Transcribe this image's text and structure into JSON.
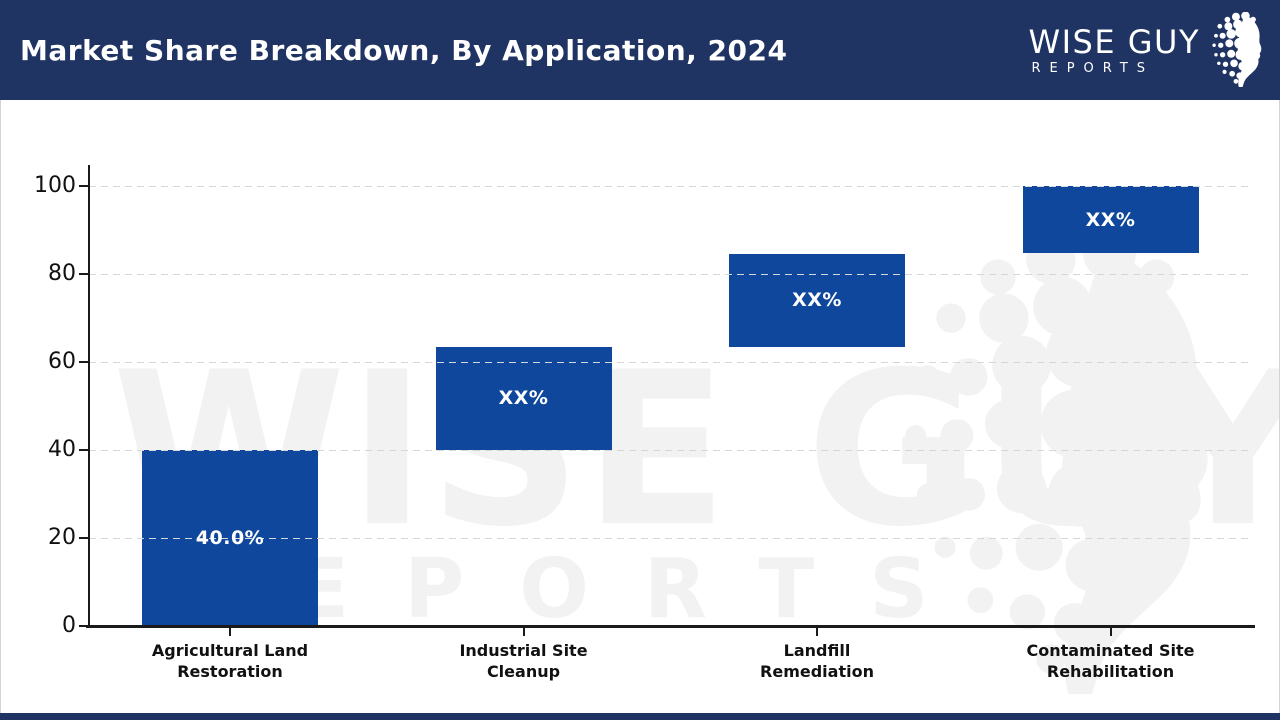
{
  "header": {
    "title": "Market Share Breakdown, By Application, 2024",
    "bg_color": "#203463",
    "logo": {
      "line1": "WISE GUY",
      "line2": "REPORTS"
    }
  },
  "watermark": {
    "line1": "WISE GUY",
    "line2": "REPORTS"
  },
  "chart_data": {
    "type": "bar",
    "subtype": "waterfall-floating-segments",
    "title": "Market Share Breakdown, By Application, 2024",
    "categories": [
      "Agricultural Land\nRestoration",
      "Industrial Site\nCleanup",
      "Landfill\nRemediation",
      "Contaminated Site\nRehabilitation"
    ],
    "segments": [
      {
        "start": 0,
        "end": 40
      },
      {
        "start": 40,
        "end": 63.5
      },
      {
        "start": 63.5,
        "end": 84.5
      },
      {
        "start": 84.7,
        "end": 100
      }
    ],
    "bar_labels": [
      "40.0%",
      "XX%",
      "XX%",
      "XX%"
    ],
    "yticks": [
      0,
      20,
      40,
      60,
      80,
      100
    ],
    "ylim": [
      0,
      100
    ],
    "xlabel": "",
    "ylabel": "",
    "grid": "horizontal-dashed",
    "legend": "none",
    "bar_color": "#0E479B",
    "grid_color": "#d7d7d7"
  }
}
